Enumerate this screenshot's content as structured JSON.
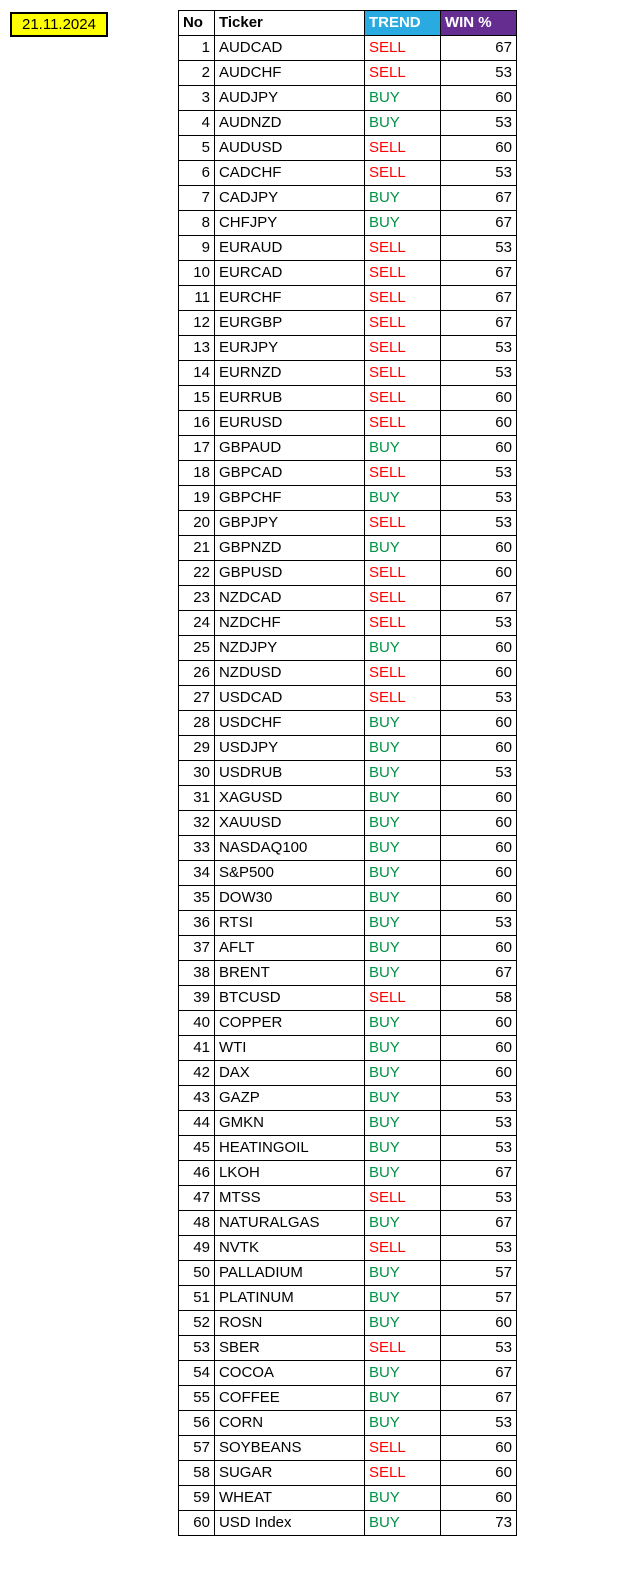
{
  "date": "21.11.2024",
  "columns": {
    "no": "No",
    "ticker": "Ticker",
    "trend": "TREND",
    "win": "WIN %"
  },
  "colors": {
    "date_bg": "#ffff00",
    "border": "#000000",
    "trend_header_bg": "#29abe2",
    "win_header_bg": "#662d91",
    "header_fg": "#ffffff",
    "buy": "#009245",
    "sell": "#ff0000"
  },
  "rows": [
    {
      "no": 1,
      "ticker": "AUDCAD",
      "trend": "SELL",
      "win": 67
    },
    {
      "no": 2,
      "ticker": "AUDCHF",
      "trend": "SELL",
      "win": 53
    },
    {
      "no": 3,
      "ticker": "AUDJPY",
      "trend": "BUY",
      "win": 60
    },
    {
      "no": 4,
      "ticker": "AUDNZD",
      "trend": "BUY",
      "win": 53
    },
    {
      "no": 5,
      "ticker": "AUDUSD",
      "trend": "SELL",
      "win": 60
    },
    {
      "no": 6,
      "ticker": "CADCHF",
      "trend": "SELL",
      "win": 53
    },
    {
      "no": 7,
      "ticker": "CADJPY",
      "trend": "BUY",
      "win": 67
    },
    {
      "no": 8,
      "ticker": "CHFJPY",
      "trend": "BUY",
      "win": 67
    },
    {
      "no": 9,
      "ticker": "EURAUD",
      "trend": "SELL",
      "win": 53
    },
    {
      "no": 10,
      "ticker": "EURCAD",
      "trend": "SELL",
      "win": 67
    },
    {
      "no": 11,
      "ticker": "EURCHF",
      "trend": "SELL",
      "win": 67
    },
    {
      "no": 12,
      "ticker": "EURGBP",
      "trend": "SELL",
      "win": 67
    },
    {
      "no": 13,
      "ticker": "EURJPY",
      "trend": "SELL",
      "win": 53
    },
    {
      "no": 14,
      "ticker": "EURNZD",
      "trend": "SELL",
      "win": 53
    },
    {
      "no": 15,
      "ticker": "EURRUB",
      "trend": "SELL",
      "win": 60
    },
    {
      "no": 16,
      "ticker": "EURUSD",
      "trend": "SELL",
      "win": 60
    },
    {
      "no": 17,
      "ticker": "GBPAUD",
      "trend": "BUY",
      "win": 60
    },
    {
      "no": 18,
      "ticker": "GBPCAD",
      "trend": "SELL",
      "win": 53
    },
    {
      "no": 19,
      "ticker": "GBPCHF",
      "trend": "BUY",
      "win": 53
    },
    {
      "no": 20,
      "ticker": "GBPJPY",
      "trend": "SELL",
      "win": 53
    },
    {
      "no": 21,
      "ticker": "GBPNZD",
      "trend": "BUY",
      "win": 60
    },
    {
      "no": 22,
      "ticker": "GBPUSD",
      "trend": "SELL",
      "win": 60
    },
    {
      "no": 23,
      "ticker": "NZDCAD",
      "trend": "SELL",
      "win": 67
    },
    {
      "no": 24,
      "ticker": "NZDCHF",
      "trend": "SELL",
      "win": 53
    },
    {
      "no": 25,
      "ticker": "NZDJPY",
      "trend": "BUY",
      "win": 60
    },
    {
      "no": 26,
      "ticker": "NZDUSD",
      "trend": "SELL",
      "win": 60
    },
    {
      "no": 27,
      "ticker": "USDCAD",
      "trend": "SELL",
      "win": 53
    },
    {
      "no": 28,
      "ticker": "USDCHF",
      "trend": "BUY",
      "win": 60
    },
    {
      "no": 29,
      "ticker": "USDJPY",
      "trend": "BUY",
      "win": 60
    },
    {
      "no": 30,
      "ticker": "USDRUB",
      "trend": "BUY",
      "win": 53
    },
    {
      "no": 31,
      "ticker": "XAGUSD",
      "trend": "BUY",
      "win": 60
    },
    {
      "no": 32,
      "ticker": "XAUUSD",
      "trend": "BUY",
      "win": 60
    },
    {
      "no": 33,
      "ticker": "NASDAQ100",
      "trend": "BUY",
      "win": 60
    },
    {
      "no": 34,
      "ticker": "S&P500",
      "trend": "BUY",
      "win": 60
    },
    {
      "no": 35,
      "ticker": "DOW30",
      "trend": "BUY",
      "win": 60
    },
    {
      "no": 36,
      "ticker": "RTSI",
      "trend": "BUY",
      "win": 53
    },
    {
      "no": 37,
      "ticker": "AFLT",
      "trend": "BUY",
      "win": 60
    },
    {
      "no": 38,
      "ticker": "BRENT",
      "trend": "BUY",
      "win": 67
    },
    {
      "no": 39,
      "ticker": "BTCUSD",
      "trend": "SELL",
      "win": 58
    },
    {
      "no": 40,
      "ticker": "COPPER",
      "trend": "BUY",
      "win": 60
    },
    {
      "no": 41,
      "ticker": "WTI",
      "trend": "BUY",
      "win": 60
    },
    {
      "no": 42,
      "ticker": "DAX",
      "trend": "BUY",
      "win": 60
    },
    {
      "no": 43,
      "ticker": "GAZP",
      "trend": "BUY",
      "win": 53
    },
    {
      "no": 44,
      "ticker": "GMKN",
      "trend": "BUY",
      "win": 53
    },
    {
      "no": 45,
      "ticker": "HEATINGOIL",
      "trend": "BUY",
      "win": 53
    },
    {
      "no": 46,
      "ticker": "LKOH",
      "trend": "BUY",
      "win": 67
    },
    {
      "no": 47,
      "ticker": "MTSS",
      "trend": "SELL",
      "win": 53
    },
    {
      "no": 48,
      "ticker": "NATURALGAS",
      "trend": "BUY",
      "win": 67
    },
    {
      "no": 49,
      "ticker": "NVTK",
      "trend": "SELL",
      "win": 53
    },
    {
      "no": 50,
      "ticker": "PALLADIUM",
      "trend": "BUY",
      "win": 57
    },
    {
      "no": 51,
      "ticker": "PLATINUM",
      "trend": "BUY",
      "win": 57
    },
    {
      "no": 52,
      "ticker": "ROSN",
      "trend": "BUY",
      "win": 60
    },
    {
      "no": 53,
      "ticker": "SBER",
      "trend": "SELL",
      "win": 53
    },
    {
      "no": 54,
      "ticker": "COCOA",
      "trend": "BUY",
      "win": 67
    },
    {
      "no": 55,
      "ticker": "COFFEE",
      "trend": "BUY",
      "win": 67
    },
    {
      "no": 56,
      "ticker": "CORN",
      "trend": "BUY",
      "win": 53
    },
    {
      "no": 57,
      "ticker": "SOYBEANS",
      "trend": "SELL",
      "win": 60
    },
    {
      "no": 58,
      "ticker": "SUGAR",
      "trend": "SELL",
      "win": 60
    },
    {
      "no": 59,
      "ticker": "WHEAT",
      "trend": "BUY",
      "win": 60
    },
    {
      "no": 60,
      "ticker": "USD Index",
      "trend": "BUY",
      "win": 73
    }
  ]
}
